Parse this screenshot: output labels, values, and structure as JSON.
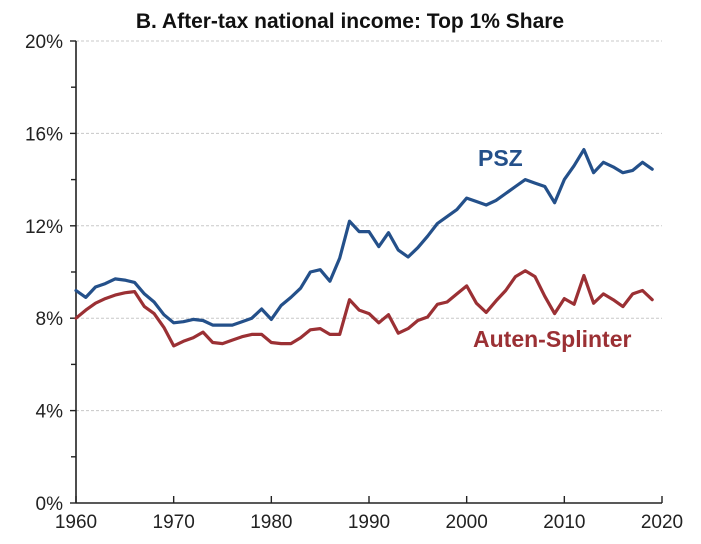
{
  "chart_data": {
    "type": "line",
    "title": "B. After-tax national income: Top 1% Share",
    "xlabel": "",
    "ylabel": "",
    "xlim": [
      1960,
      2020
    ],
    "ylim": [
      0,
      20
    ],
    "x_ticks": [
      1960,
      1970,
      1980,
      1990,
      2000,
      2010,
      2020
    ],
    "x_tick_labels": [
      "1960",
      "1970",
      "1980",
      "1990",
      "2000",
      "2010",
      "2020"
    ],
    "y_ticks": [
      0,
      4,
      8,
      12,
      16,
      20
    ],
    "y_tick_labels": [
      "0%",
      "4%",
      "8%",
      "12%",
      "16%",
      "20%"
    ],
    "y_minor_ticks": [
      2,
      6,
      10,
      14,
      18
    ],
    "grid": true,
    "legend": "inline labels",
    "x": [
      1960,
      1961,
      1962,
      1963,
      1964,
      1965,
      1966,
      1967,
      1968,
      1969,
      1970,
      1971,
      1972,
      1973,
      1974,
      1975,
      1976,
      1977,
      1978,
      1979,
      1980,
      1981,
      1982,
      1983,
      1984,
      1985,
      1986,
      1987,
      1988,
      1989,
      1990,
      1991,
      1992,
      1993,
      1994,
      1995,
      1996,
      1997,
      1998,
      1999,
      2000,
      2001,
      2002,
      2003,
      2004,
      2005,
      2006,
      2007,
      2008,
      2009,
      2010,
      2011,
      2012,
      2013,
      2014,
      2015,
      2016,
      2017,
      2018,
      2019
    ],
    "series": [
      {
        "name": "PSZ",
        "label": "PSZ",
        "color": "#24508a",
        "label_position": "above line, near 2000-2005",
        "values": [
          9.2,
          8.9,
          9.35,
          9.5,
          9.7,
          9.65,
          9.55,
          9.05,
          8.7,
          8.15,
          7.8,
          7.85,
          7.95,
          7.9,
          7.7,
          7.7,
          7.7,
          7.85,
          8.0,
          8.4,
          7.95,
          8.55,
          8.9,
          9.3,
          10.0,
          10.1,
          9.6,
          10.6,
          12.2,
          11.75,
          11.75,
          11.1,
          11.7,
          10.95,
          10.65,
          11.05,
          11.55,
          12.1,
          12.4,
          12.7,
          13.2,
          13.05,
          12.9,
          13.1,
          13.4,
          13.7,
          14.0,
          13.85,
          13.7,
          13.0,
          14.0,
          14.6,
          15.3,
          14.3,
          14.75,
          14.55,
          14.3,
          14.4,
          14.75,
          14.45
        ]
      },
      {
        "name": "Auten-Splinter",
        "label": "Auten-Splinter",
        "color": "#9b3034",
        "label_position": "below line, near 2000-2019",
        "values": [
          8.0,
          8.35,
          8.65,
          8.85,
          9.0,
          9.1,
          9.15,
          8.5,
          8.2,
          7.6,
          6.8,
          7.0,
          7.15,
          7.4,
          6.95,
          6.9,
          7.05,
          7.2,
          7.3,
          7.3,
          6.95,
          6.9,
          6.9,
          7.15,
          7.5,
          7.55,
          7.3,
          7.3,
          8.8,
          8.35,
          8.2,
          7.8,
          8.15,
          7.35,
          7.55,
          7.9,
          8.05,
          8.6,
          8.7,
          9.05,
          9.4,
          8.65,
          8.25,
          8.75,
          9.2,
          9.8,
          10.05,
          9.8,
          8.95,
          8.2,
          8.85,
          8.6,
          9.85,
          8.65,
          9.05,
          8.8,
          8.5,
          9.05,
          9.2,
          8.8
        ]
      }
    ]
  }
}
